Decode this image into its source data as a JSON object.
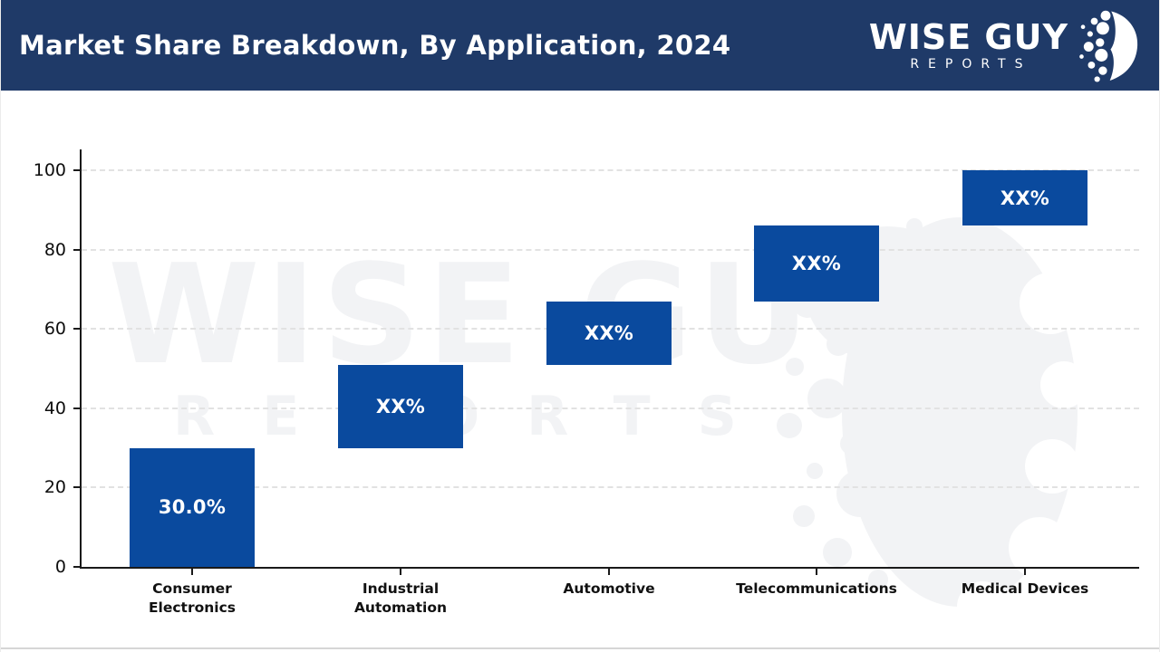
{
  "header": {
    "title": "Market Share Breakdown, By Application, 2024",
    "logo": {
      "line1": "WISE GUY",
      "line2": "REPORTS"
    }
  },
  "watermark": {
    "line1": "WISE GUY",
    "line2": "REPORTS"
  },
  "chart_data": {
    "type": "bar",
    "subtype": "waterfall",
    "title": "Market Share Breakdown, By Application, 2024",
    "categories": [
      "Consumer Electronics",
      "Industrial Automation",
      "Automotive",
      "Telecommunications",
      "Medical Devices"
    ],
    "category_label_lines": [
      [
        "Consumer",
        "Electronics"
      ],
      [
        "Industrial",
        "Automation"
      ],
      [
        "Automotive"
      ],
      [
        "Telecommunications"
      ],
      [
        "Medical Devices"
      ]
    ],
    "segments": [
      {
        "category": "Consumer Electronics",
        "start": 0,
        "end": 30,
        "label": "30.0%"
      },
      {
        "category": "Industrial Automation",
        "start": 30,
        "end": 51,
        "label": "XX%"
      },
      {
        "category": "Automotive",
        "start": 51,
        "end": 67,
        "label": "XX%"
      },
      {
        "category": "Telecommunications",
        "start": 67,
        "end": 86,
        "label": "XX%"
      },
      {
        "category": "Medical Devices",
        "start": 86,
        "end": 100,
        "label": "XX%"
      }
    ],
    "yticks": [
      0,
      20,
      40,
      60,
      80,
      100
    ],
    "ylim": [
      0,
      105
    ],
    "xlabel": "",
    "ylabel": "",
    "grid": "horizontal-dashed",
    "legend": "none",
    "bar_color": "#0a4a9e",
    "bar_label_color": "#ffffff"
  },
  "colors": {
    "header_bg": "#1f3a68",
    "bar": "#0a4a9e",
    "grid": "#e2e2e2",
    "axis": "#1a1a1a",
    "watermark": "#f2f3f5",
    "bottom_rule": "#d6d6d6"
  }
}
